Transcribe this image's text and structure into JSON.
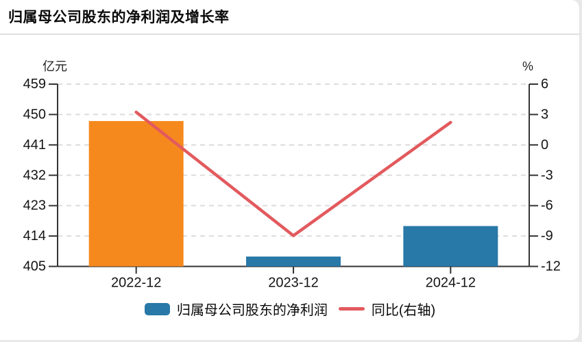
{
  "page": {
    "title": "归属母公司股东的净利润及增长率"
  },
  "chart_data": {
    "type": "bar+line",
    "title": "归属母公司股东的净利润及增长率",
    "categories": [
      "2022-12",
      "2023-12",
      "2024-12"
    ],
    "series": [
      {
        "name": "归属母公司股东的净利润",
        "type": "bar",
        "axis": "left",
        "values": [
          448.07,
          407.92,
          416.96
        ],
        "bar_colors": [
          "#f6891e",
          "#2878a8",
          "#2878a8"
        ],
        "legend_color": "#2878a8"
      },
      {
        "name": "同比(右轴)",
        "type": "line",
        "axis": "right",
        "values": [
          3.23,
          -8.96,
          2.22
        ],
        "color": "#e25a5e"
      }
    ],
    "left_axis": {
      "unit": "亿元",
      "min": 405,
      "max": 459,
      "ticks": [
        459,
        450,
        441,
        432,
        423,
        414,
        405
      ]
    },
    "right_axis": {
      "unit": "%",
      "min": -12,
      "max": 6,
      "ticks": [
        6,
        3,
        0,
        -3,
        -6,
        -9,
        -12
      ]
    },
    "layout_hints": {
      "grid": "horizontal-dashed",
      "legend_position": "bottom-center"
    },
    "colors": {
      "bar_highlight": "#f6891e",
      "bar_normal": "#2878a8",
      "line": "#e25a5e",
      "grid": "#dcdcdc",
      "axis": "#333333"
    }
  }
}
